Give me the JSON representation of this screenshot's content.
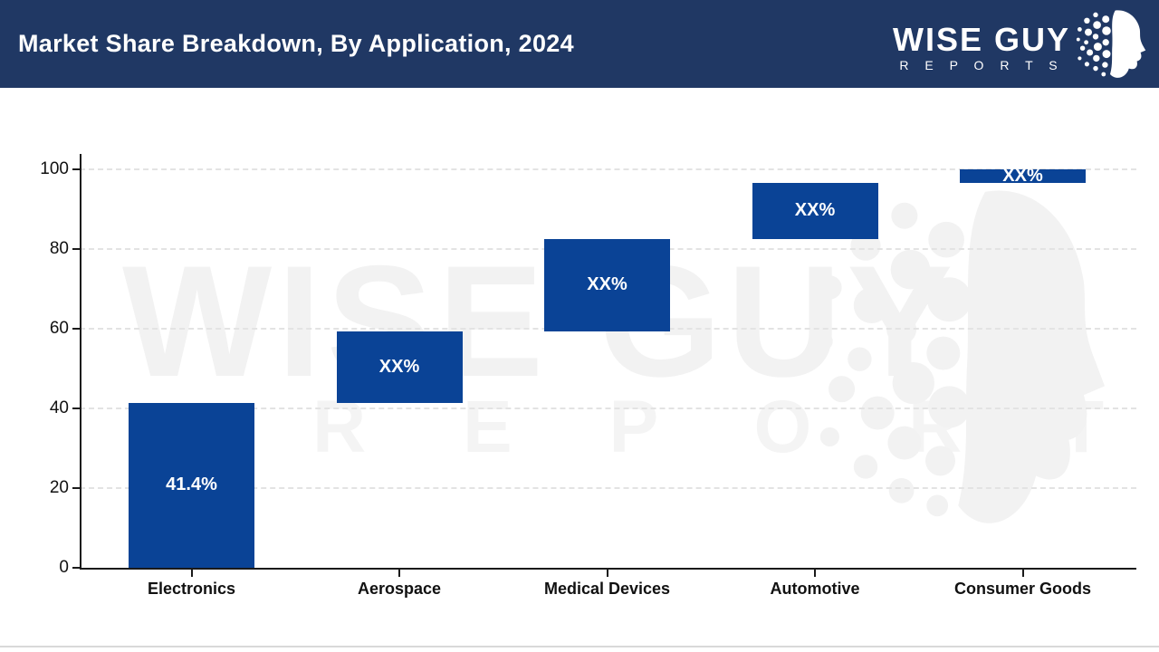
{
  "header": {
    "title": "Market Share Breakdown, By Application, 2024",
    "logo": {
      "main": "WISE GUY",
      "sub": "R E P O R T S"
    }
  },
  "watermark": {
    "line1": "WISE GUY",
    "line2": "R E P O R T S"
  },
  "colors": {
    "header_bg": "#203864",
    "bar": "#0a4396",
    "bar_label": "#ffffff",
    "grid": "#e3e3e3",
    "axis": "#1a1a1a",
    "watermark": "#f2f2f2"
  },
  "chart_data": {
    "type": "bar",
    "subtype": "waterfall",
    "title": "Market Share Breakdown, By Application, 2024",
    "xlabel": "",
    "ylabel": "",
    "categories": [
      "Electronics",
      "Aerospace",
      "Medical Devices",
      "Automotive",
      "Consumer Goods"
    ],
    "segments": [
      {
        "category": "Electronics",
        "start": 0,
        "end": 41.4,
        "label": "41.4%"
      },
      {
        "category": "Aerospace",
        "start": 41.4,
        "end": 59.4,
        "label": "XX%"
      },
      {
        "category": "Medical Devices",
        "start": 59.4,
        "end": 82.6,
        "label": "XX%"
      },
      {
        "category": "Automotive",
        "start": 82.6,
        "end": 96.6,
        "label": "XX%"
      },
      {
        "category": "Consumer Goods",
        "start": 96.6,
        "end": 100,
        "label": "XX%"
      }
    ],
    "ylim": [
      0,
      100
    ],
    "yticks": [
      0,
      20,
      40,
      60,
      80,
      100
    ],
    "grid": "horizontal-dashed",
    "legend": "none"
  }
}
